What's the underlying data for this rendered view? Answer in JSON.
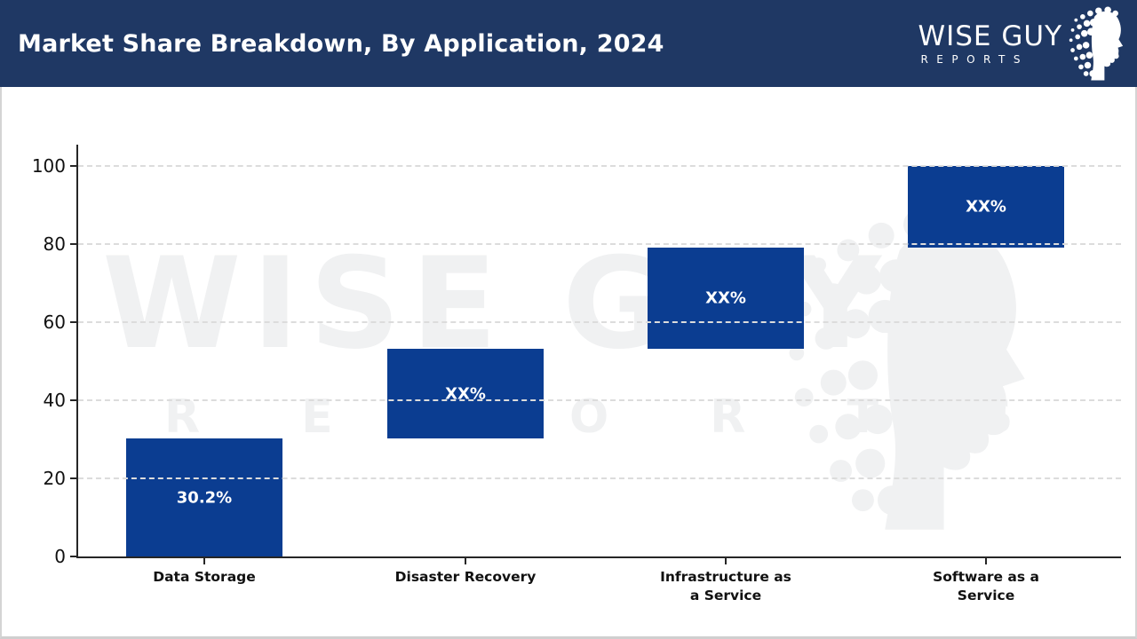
{
  "header": {
    "title": "Market Share Breakdown, By Application, 2024",
    "logo": {
      "line1": "WISE GUY",
      "line2": "REPORTS"
    }
  },
  "watermark": {
    "line1": "WISE GUY",
    "line2": "R E P O R T S"
  },
  "chart_data": {
    "type": "bar",
    "subtype": "waterfall",
    "title": "Market Share Breakdown, By Application, 2024",
    "categories": [
      "Data Storage",
      "Disaster Recovery",
      "Infrastructure as\na Service",
      "Software as a\nService"
    ],
    "segments": [
      {
        "category": "Data Storage",
        "start": 0,
        "end": 30.2,
        "label": "30.2%"
      },
      {
        "category": "Disaster Recovery",
        "start": 30.2,
        "end": 53.2,
        "label": "XX%"
      },
      {
        "category": "Infrastructure as a Service",
        "start": 53.2,
        "end": 79.1,
        "label": "XX%"
      },
      {
        "category": "Software as a Service",
        "start": 79.1,
        "end": 100,
        "label": "XX%"
      }
    ],
    "y_ticks": [
      0,
      20,
      40,
      60,
      80,
      100
    ],
    "ylim": [
      0,
      105
    ],
    "xlabel": "",
    "ylabel": "",
    "grid": "horizontal-dashed",
    "legend": "none",
    "bar_color": "#0b3d91",
    "bar_label_color": "#ffffff",
    "header_color": "#1f3864",
    "axis_color": "#262626"
  }
}
